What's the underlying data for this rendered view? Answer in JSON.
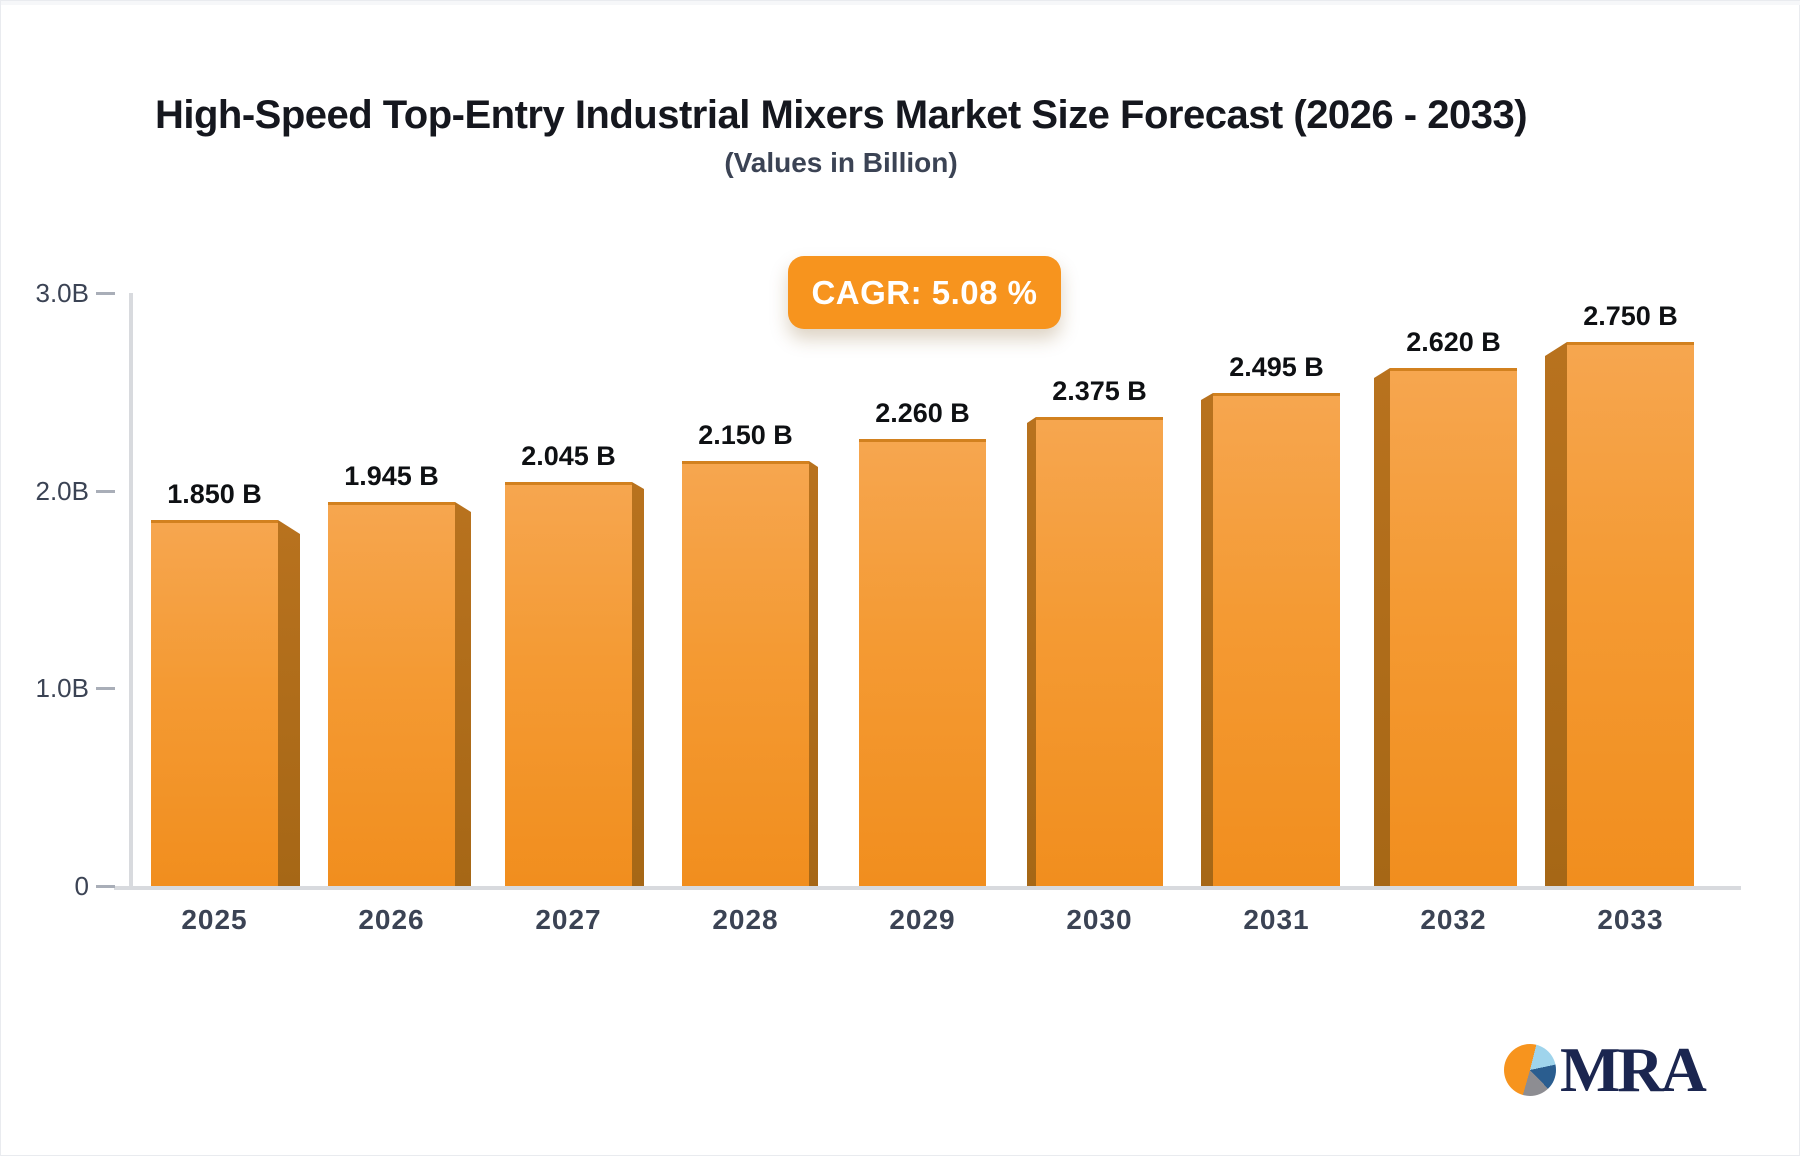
{
  "chart": {
    "title": "High-Speed Top-Entry Industrial Mixers Market Size Forecast (2026 - 2033)",
    "subtitle": "(Values in Billion)",
    "cagr_badge": "CAGR: 5.08 %"
  },
  "logo": {
    "text": "MRA"
  },
  "chart_data": {
    "type": "bar",
    "title": "High-Speed Top-Entry Industrial Mixers Market Size Forecast (2026 - 2033)",
    "subtitle": "(Values in Billion)",
    "unit": "Billion",
    "cagr_pct": 5.08,
    "categories": [
      "2025",
      "2026",
      "2027",
      "2028",
      "2029",
      "2030",
      "2031",
      "2032",
      "2033"
    ],
    "values": [
      1.85,
      1.945,
      2.045,
      2.15,
      2.26,
      2.375,
      2.495,
      2.62,
      2.75
    ],
    "value_labels": [
      "1.850 B",
      "1.945 B",
      "2.045 B",
      "2.150 B",
      "2.260 B",
      "2.375 B",
      "2.495 B",
      "2.620 B",
      "2.750 B"
    ],
    "xlabel": "",
    "ylabel": "",
    "ylim": [
      0,
      3
    ],
    "y_ticks": [
      {
        "value": 0,
        "label": "0"
      },
      {
        "value": 1,
        "label": "1.0B"
      },
      {
        "value": 2,
        "label": "2.0B"
      },
      {
        "value": 3,
        "label": "3.0B"
      }
    ],
    "grid": false,
    "legend": false,
    "bar_style": "3d-perspective",
    "colors": {
      "accent": "#f7941e",
      "bar_face_top": "#f6a64f",
      "bar_face_mid": "#f49a33",
      "bar_face_bottom": "#f18e1e",
      "bar_side": "#b8721e",
      "bar_side_dark": "#a66716",
      "bar_top_edge": "#d2811f",
      "axis_line": "#d8dade",
      "tick": "#a9aeb8",
      "axis_text": "#3b4354",
      "value_text": "#0e1013",
      "title_text": "#15171e",
      "logo_navy": "#1b2650",
      "logo_blue": "#9fd4ec",
      "logo_steel": "#2a5d8f",
      "logo_gray": "#8d8d92"
    }
  }
}
